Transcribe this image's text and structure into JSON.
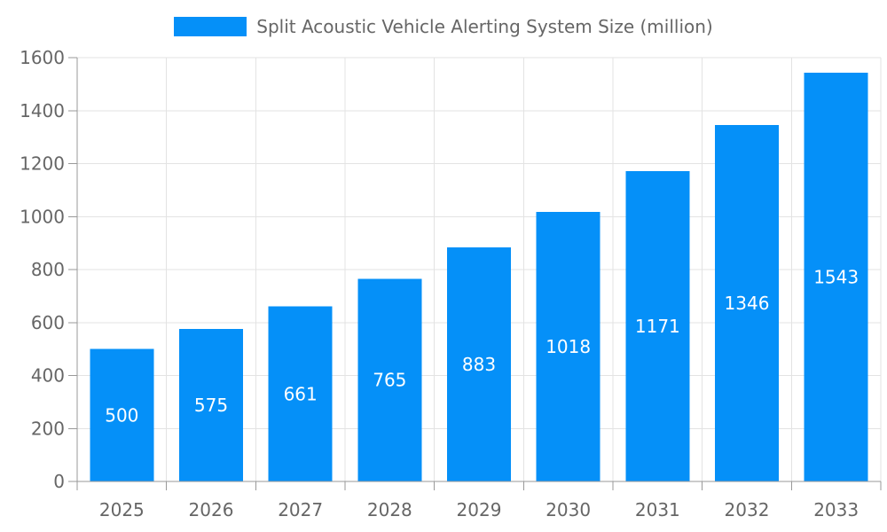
{
  "legend": {
    "label": "Split Acoustic Vehicle Alerting System Size (million)"
  },
  "colors": {
    "bar": "#0590F8",
    "axis": "#999999",
    "tick": "#999999",
    "grid": "#E3E3E3",
    "tick_label": "#666666",
    "legend_text": "#666666",
    "value_label": "#FFFFFF",
    "background": "#FFFFFF"
  },
  "chart_data": {
    "type": "bar",
    "title": "Split Acoustic Vehicle Alerting System Size (million)",
    "series_name": "Split Acoustic Vehicle Alerting System Size (million)",
    "categories": [
      "2025",
      "2026",
      "2027",
      "2028",
      "2029",
      "2030",
      "2031",
      "2032",
      "2033"
    ],
    "values": [
      500,
      575,
      661,
      765,
      883,
      1018,
      1171,
      1346,
      1543
    ],
    "xlabel": "",
    "ylabel": "",
    "ylim": [
      0,
      1600
    ],
    "yticks": [
      0,
      200,
      400,
      600,
      800,
      1000,
      1200,
      1400,
      1600
    ],
    "grid": true,
    "legend_position": "top-center",
    "value_label_position": "inside-center"
  }
}
